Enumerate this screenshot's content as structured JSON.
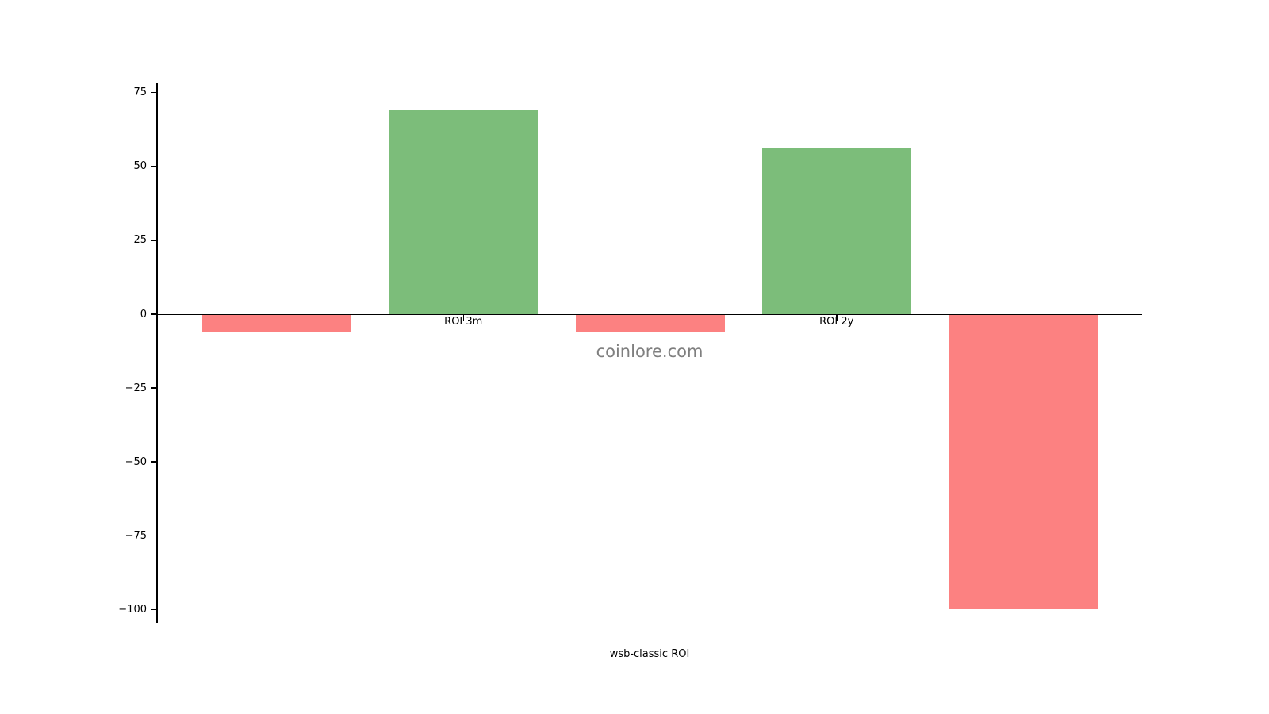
{
  "chart_data": {
    "type": "bar",
    "title": "wsb-classic ROI",
    "watermark": "coinlore.com",
    "categories": [
      "",
      "ROI 3m",
      "",
      "ROI 2y",
      ""
    ],
    "visible_x_tick_labels": [
      "ROI 3m",
      "ROI 2y"
    ],
    "values": [
      -6,
      69,
      -6,
      56,
      -100
    ],
    "bar_colors": [
      "#fc8181",
      "#7cbd7a",
      "#fc8181",
      "#7cbd7a",
      "#fc8181"
    ],
    "positive_color": "#7cbd7a",
    "negative_color": "#fc8181",
    "y_ticks": [
      75,
      50,
      25,
      0,
      -25,
      -50,
      -75,
      -100
    ],
    "y_tick_labels": [
      "75",
      "50",
      "25",
      "0",
      "−25",
      "−50",
      "−75",
      "−100"
    ],
    "ylim": [
      -104,
      78
    ],
    "xlabel": "",
    "ylabel": "",
    "grid": false,
    "legend": null,
    "background_color": "#ffffff",
    "axis_color": "#000000",
    "watermark_color": "#7f7f7f"
  }
}
